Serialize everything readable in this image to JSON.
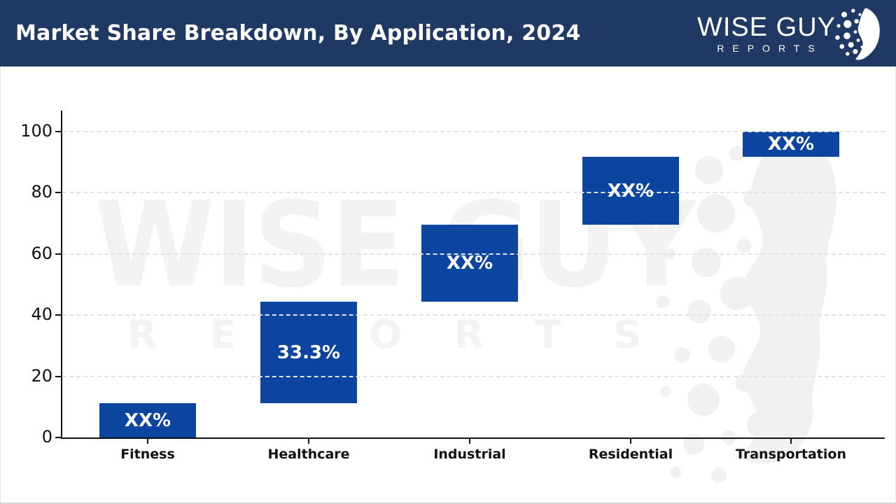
{
  "header": {
    "title": "Market Share Breakdown, By Application, 2024",
    "logo": {
      "line1": "WISE GUY",
      "line2": "REPORTS"
    }
  },
  "watermark": {
    "line1": "WISE GUY",
    "line2": "REPORTS"
  },
  "chart_data": {
    "type": "bar",
    "subtype": "floating-segment-waterfall",
    "title": "Market Share Breakdown, By Application, 2024",
    "categories": [
      "Fitness",
      "Healthcare",
      "Industrial",
      "Residential",
      "Transportation"
    ],
    "bars": [
      {
        "category": "Fitness",
        "label": "XX%",
        "start": 0,
        "end": 11.1
      },
      {
        "category": "Healthcare",
        "label": "33.3%",
        "start": 11.1,
        "end": 44.4
      },
      {
        "category": "Industrial",
        "label": "XX%",
        "start": 44.4,
        "end": 69.4
      },
      {
        "category": "Residential",
        "label": "XX%",
        "start": 69.4,
        "end": 91.7
      },
      {
        "category": "Transportation",
        "label": "XX%",
        "start": 91.7,
        "end": 100
      }
    ],
    "y_ticks": [
      0,
      20,
      40,
      60,
      80,
      100
    ],
    "ylim": [
      0,
      106.8
    ],
    "xlabel": "",
    "ylabel": "",
    "legend": "none",
    "grid": "horizontal-dashed-over-bars",
    "colors": {
      "bar": "#0C45A0",
      "bar_label": "#FFFFFF",
      "header_bg": "#1F3864",
      "header_text": "#FFFFFF",
      "grid": "#E2E2E2",
      "axis": "#111111",
      "tick_text": "#111111",
      "watermark": "#F3F3F3",
      "background": "#FFFFFF"
    }
  }
}
